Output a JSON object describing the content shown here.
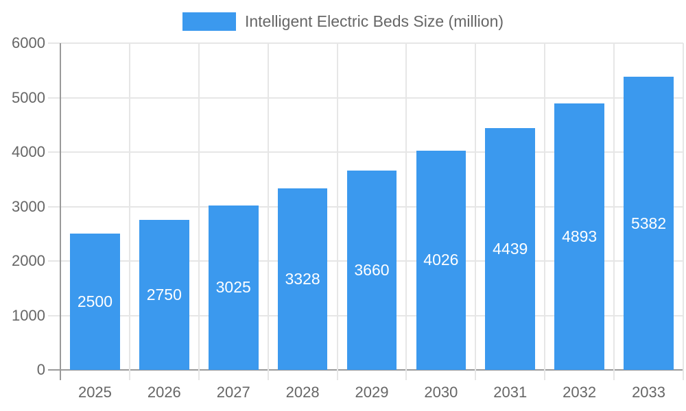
{
  "chart_data": {
    "type": "bar",
    "title": "Intelligent Electric Beds Size (million)",
    "categories": [
      "2025",
      "2026",
      "2027",
      "2028",
      "2029",
      "2030",
      "2031",
      "2032",
      "2033"
    ],
    "values": [
      2500,
      2750,
      3025,
      3328,
      3660,
      4026,
      4439,
      4893,
      5382
    ],
    "xlabel": "",
    "ylabel": "",
    "ylim": [
      0,
      6000
    ],
    "yticks": [
      0,
      1000,
      2000,
      3000,
      4000,
      5000,
      6000
    ],
    "grid": true,
    "legend_position": "top-center",
    "value_labels": "inside-center"
  },
  "colors": {
    "bar": "#3b99ee",
    "grid": "#e6e6e6",
    "axis": "#999999",
    "tick_text": "#666666",
    "bar_label_text": "#ffffff",
    "background": "#ffffff"
  }
}
